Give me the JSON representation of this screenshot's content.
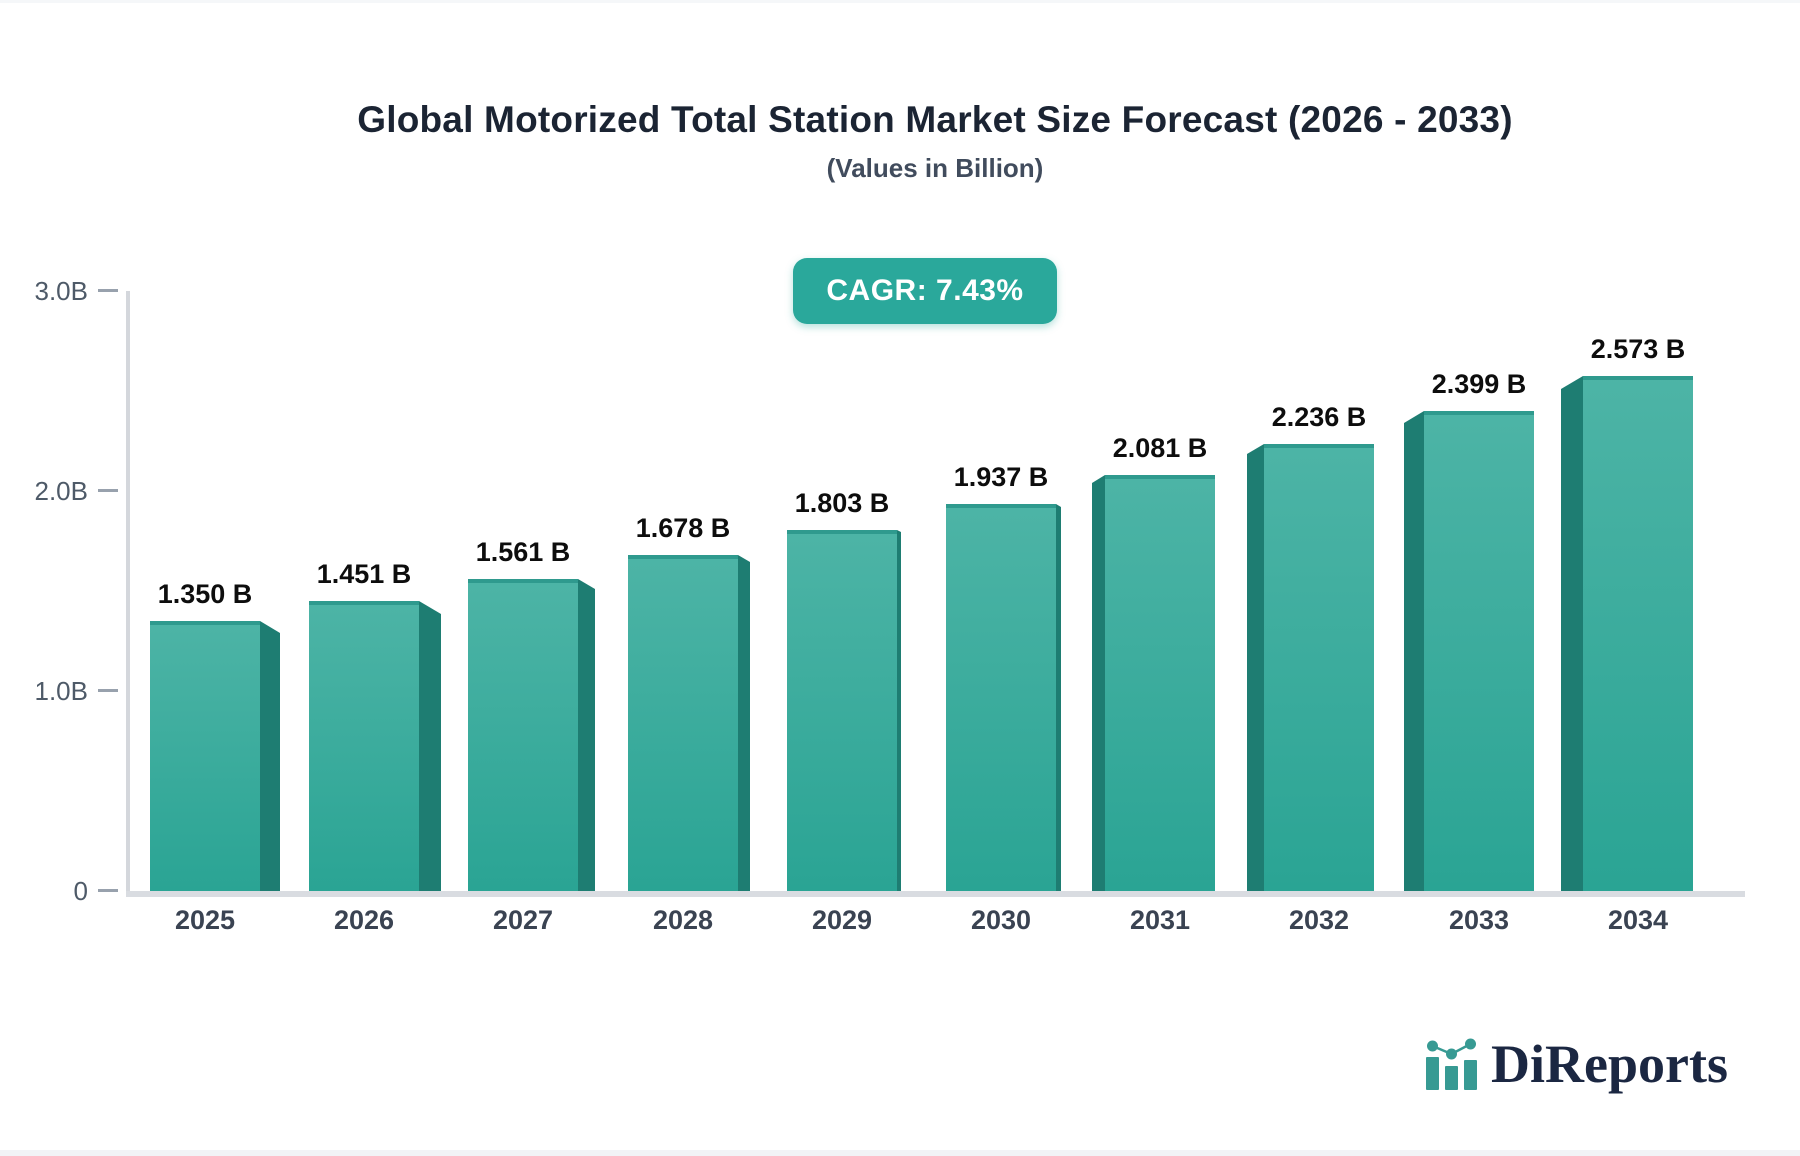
{
  "title": "Global Motorized Total Station Market Size Forecast (2026 - 2033)",
  "subtitle": "(Values in Billion)",
  "badge": {
    "label": "CAGR: 7.43%"
  },
  "chart_data": {
    "type": "bar",
    "title": "Global Motorized Total Station Market Size Forecast (2026 - 2033)",
    "subtitle": "(Values in Billion)",
    "cagr": "7.43%",
    "categories": [
      "2025",
      "2026",
      "2027",
      "2028",
      "2029",
      "2030",
      "2031",
      "2032",
      "2033",
      "2034"
    ],
    "values": [
      1.35,
      1.451,
      1.561,
      1.678,
      1.803,
      1.937,
      2.081,
      2.236,
      2.399,
      2.573
    ],
    "value_labels": [
      "1.350 B",
      "1.451 B",
      "1.561 B",
      "1.678 B",
      "1.803 B",
      "1.937 B",
      "2.081 B",
      "2.236 B",
      "2.399 B",
      "2.573 B"
    ],
    "xlabel": "",
    "ylabel": "",
    "ylim": [
      0,
      3
    ],
    "yticks": [
      "0",
      "1.0B",
      "2.0B",
      "3.0B"
    ],
    "ytick_values": [
      0,
      1,
      2,
      3
    ],
    "grid": false,
    "legend": false,
    "unit": "Billion",
    "bar_color_top": "#4db4a6",
    "bar_color_bottom": "#2aa494",
    "bar_side_color": "#1e7d72",
    "badge_color": "#2aa89b"
  },
  "logo": {
    "text": "DiReports",
    "icon": "mini-bar-chart-icon",
    "icon_color": "#379a93",
    "text_color": "#1b2742"
  },
  "colors": {
    "background": "#ffffff",
    "axis": "#d4d7dc",
    "baseline": "#d9dce1",
    "axis_text": "#4e5a68",
    "category_text": "#3a4352",
    "value_text": "#0d0d0d",
    "title_text": "#1b2433"
  }
}
